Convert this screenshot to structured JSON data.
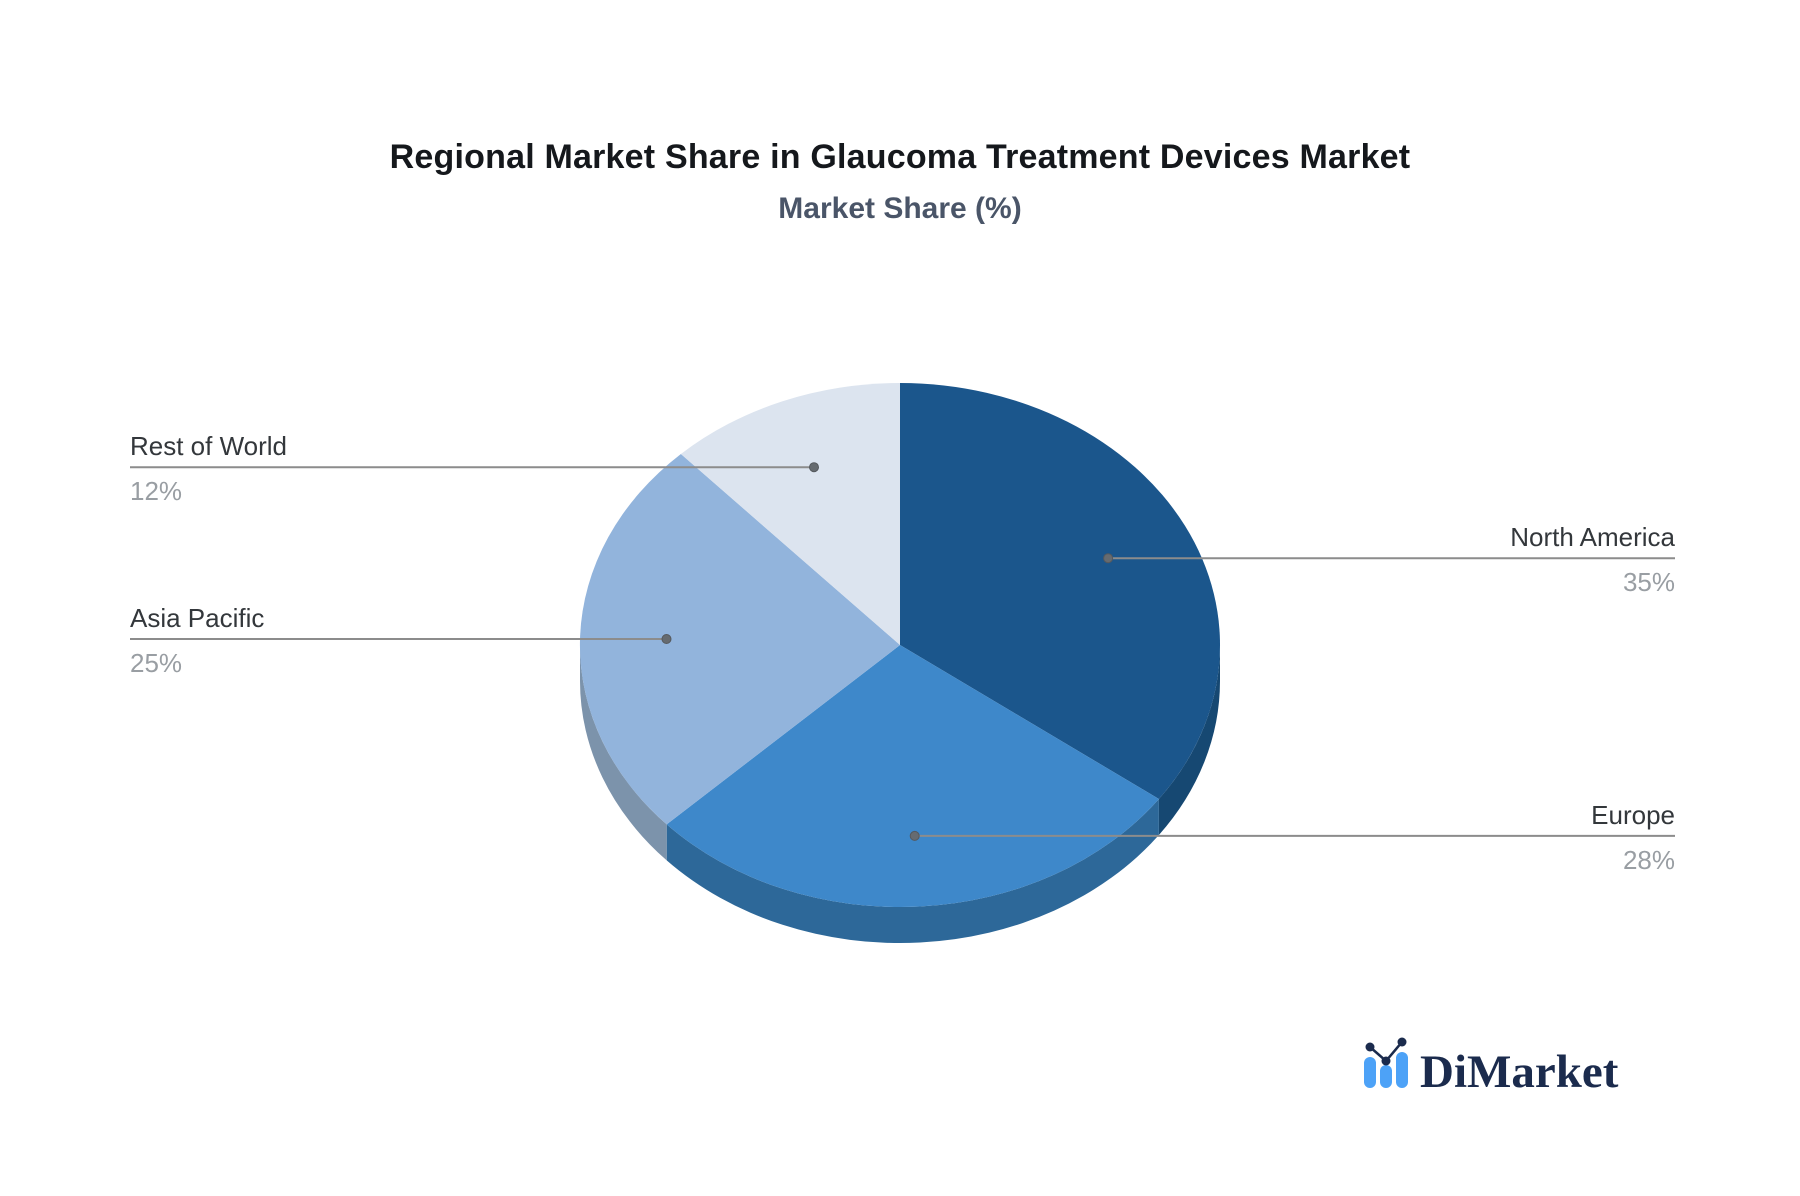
{
  "chart_data": {
    "type": "pie",
    "title": "Regional Market Share in Glaucoma Treatment Devices Market",
    "subtitle": "Market Share (%)",
    "unit": "%",
    "effect": "3d",
    "start_angle_deg": 0,
    "direction": "clockwise",
    "labels": [
      "North America",
      "Europe",
      "Asia Pacific",
      "Rest of World"
    ],
    "values": [
      35,
      28,
      25,
      12
    ],
    "display_percents": [
      "35%",
      "28%",
      "25%",
      "12%"
    ],
    "colors": [
      "#1B568C",
      "#3E88CA",
      "#92B4DC",
      "#DCE4EF"
    ],
    "side_colors": [
      "#164872",
      "#2D6899",
      "#7C93AB",
      "#C7D2E0"
    ],
    "label_sides": [
      "right",
      "right",
      "left",
      "left"
    ],
    "leader_line_color": "#8C8C8C",
    "leader_dot_color": "#666B70",
    "label_name_color": "#33373B",
    "label_value_color": "#999EA3",
    "legend": "none",
    "title_color": "#15181C",
    "subtitle_color": "#4A5568"
  },
  "branding": {
    "name": "DiMarket",
    "icon": "bar-line-chart-logo-icon",
    "text_color": "#1B2B4D",
    "bar_color": "#4DA2F7"
  },
  "page": {
    "background": "#FFFFFF"
  }
}
